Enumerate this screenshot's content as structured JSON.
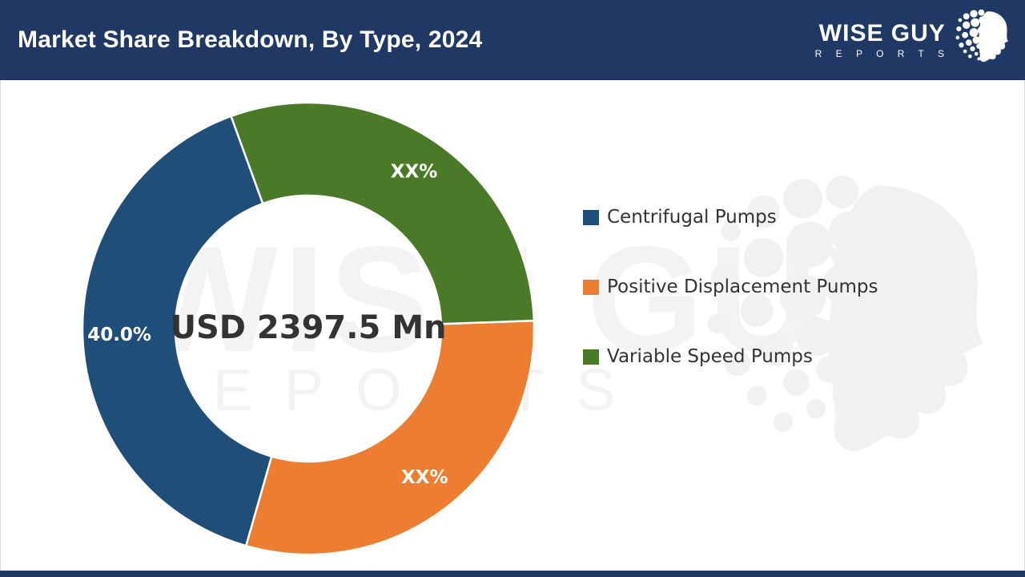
{
  "header": {
    "title": "Market Share Breakdown, By Type, 2024"
  },
  "brand": {
    "line1": "WISE GUY",
    "line2": "R E P O R T S"
  },
  "colors": {
    "header_bg": "#1F3864",
    "footer_bg": "#1F3864",
    "border": "#d9d9d9",
    "text_dark": "#333333",
    "watermark": "#f3f3f3",
    "slice_label_text": "#ffffff"
  },
  "chart_data": {
    "type": "pie",
    "subtype": "donut",
    "title": "Market Share Breakdown, By Type, 2024",
    "center_label": "USD 2397.5 Mn",
    "legend_position": "right",
    "start_angle_deg": 110,
    "direction": "counterclockwise",
    "inner_radius_ratio": 0.59,
    "slices": [
      {
        "name": "Centrifugal Pumps",
        "value_pct": 40.0,
        "label": "40.0%",
        "color": "#1F4E79"
      },
      {
        "name": "Positive Displacement Pumps",
        "value_pct": 30.0,
        "label": "XX%",
        "color": "#ED7D31"
      },
      {
        "name": "Variable Speed Pumps",
        "value_pct": 30.0,
        "label": "XX%",
        "color": "#4A7A28"
      }
    ]
  }
}
